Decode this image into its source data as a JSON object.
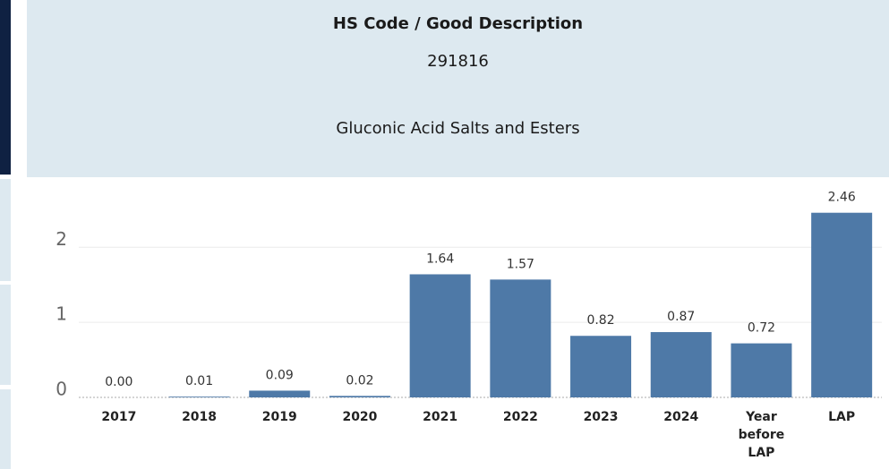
{
  "header": {
    "title": "HS Code / Good Description",
    "code": "291816",
    "description": "Gluconic Acid Salts and Esters"
  },
  "chart_data": {
    "type": "bar",
    "categories": [
      "2017",
      "2018",
      "2019",
      "2020",
      "2021",
      "2022",
      "2023",
      "2024",
      "Year before LAP",
      "LAP"
    ],
    "values": [
      0,
      0.01,
      0.09,
      0.02,
      1.64,
      1.57,
      0.82,
      0.87,
      0.72,
      2.46
    ],
    "value_labels": [
      "0.00",
      "0.01",
      "0.09",
      "0.02",
      "1.64",
      "1.57",
      "0.82",
      "0.87",
      "0.72",
      "2.46"
    ],
    "color": "#4e79a7",
    "ylim": [
      0,
      2.85
    ],
    "yticks": [
      0,
      1,
      2
    ],
    "grid": true
  }
}
